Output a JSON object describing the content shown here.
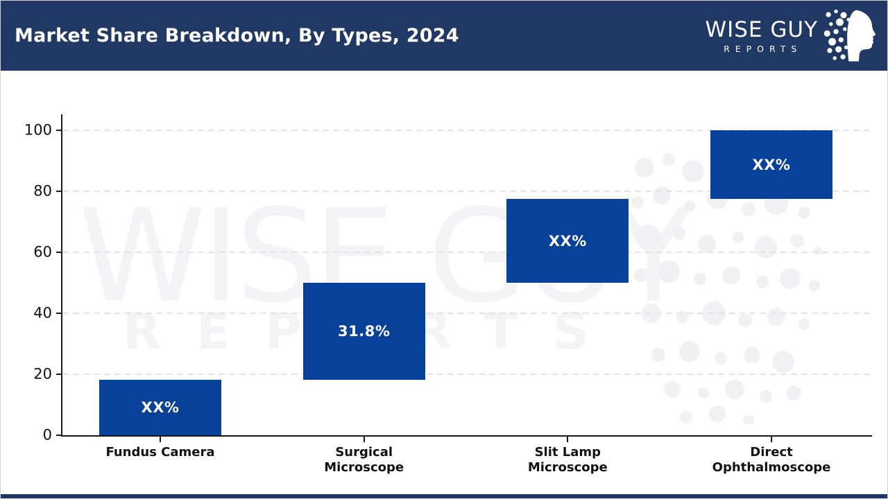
{
  "header": {
    "title": "Market Share Breakdown, By Types, 2024",
    "logo": {
      "line1": "WISE GUY",
      "line2": "REPORTS"
    }
  },
  "watermark": {
    "line1": "WISE GUY",
    "line2": "REPORTS"
  },
  "chart_data": {
    "type": "bar",
    "subtype": "waterfall",
    "title": "Market Share Breakdown, By Types, 2024",
    "categories": [
      "Fundus Camera",
      "Surgical Microscope",
      "Slit Lamp Microscope",
      "Direct Ophthalmoscope"
    ],
    "category_lines": [
      [
        "Fundus Camera"
      ],
      [
        "Surgical",
        "Microscope"
      ],
      [
        "Slit Lamp",
        "Microscope"
      ],
      [
        "Direct",
        "Ophthalmoscope"
      ]
    ],
    "series": [
      {
        "name": "Market Share (%)",
        "starts": [
          0,
          18.2,
          50,
          77.5
        ],
        "ends": [
          18.2,
          50,
          77.5,
          100
        ],
        "values": [
          18.2,
          31.8,
          27.5,
          22.5
        ]
      }
    ],
    "bar_labels": [
      "XX%",
      "31.8%",
      "XX%",
      "XX%"
    ],
    "yticks": [
      0,
      20,
      40,
      60,
      80,
      100
    ],
    "ylim": [
      0,
      105
    ],
    "xlabel": "",
    "ylabel": "",
    "grid": "horizontal-dashed",
    "legend": "none",
    "colors": {
      "bar": "#08419a",
      "bar_label": "#ffffff",
      "axis": "#1a1a1a",
      "gridline": "#e4e4e4",
      "header_bg": "#203864",
      "watermark": "#f4f4f6"
    }
  }
}
